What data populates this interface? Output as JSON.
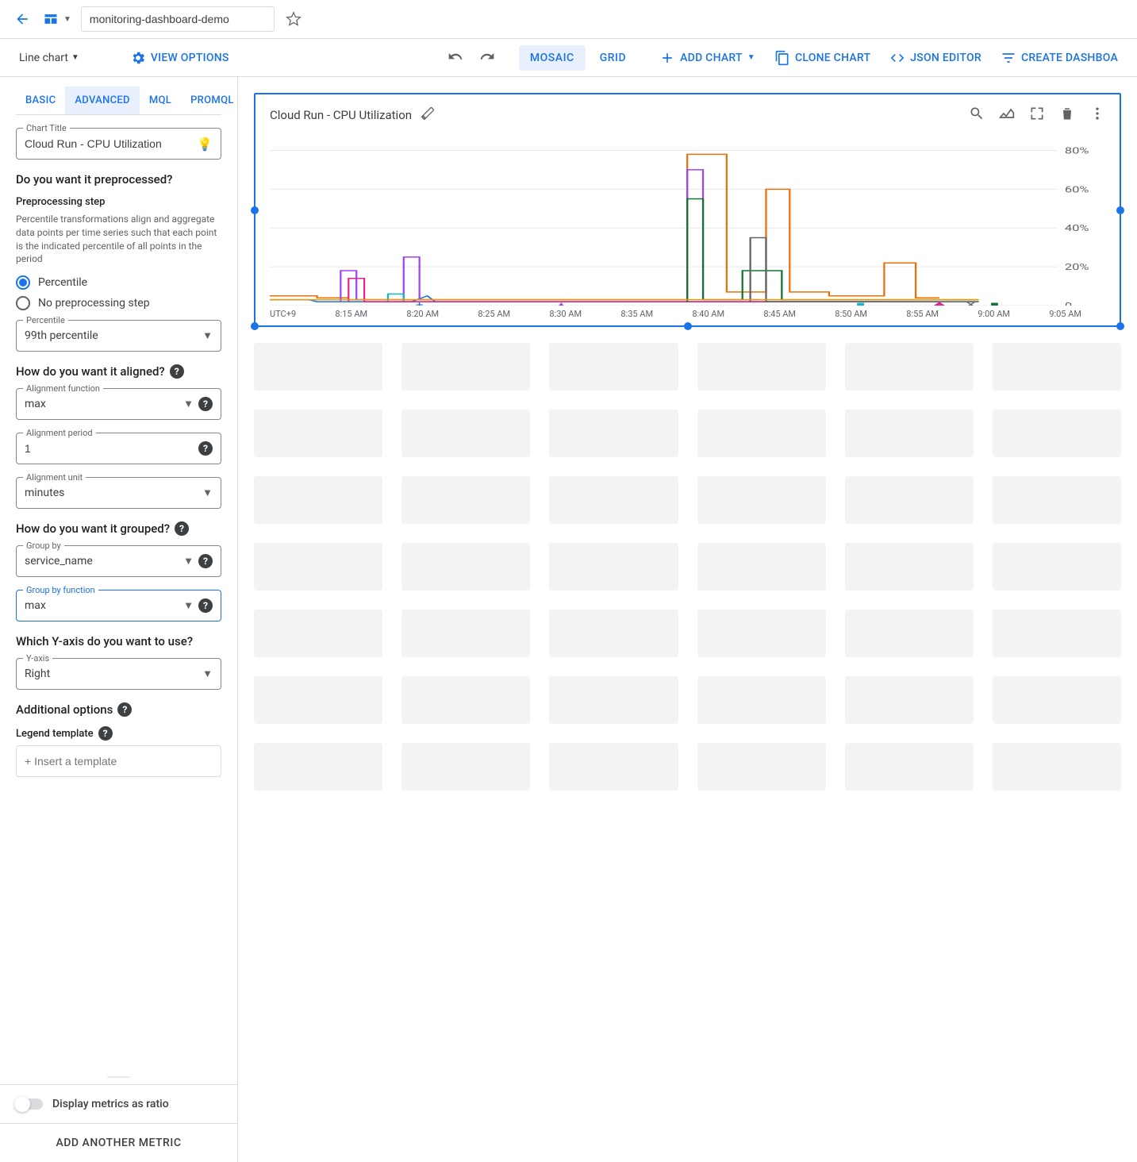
{
  "breadcrumb": "monitoring-dashboard-demo",
  "chart_type_selector": "Line chart",
  "view_options": "VIEW OPTIONS",
  "layout_seg": {
    "mosaic": "MOSAIC",
    "grid": "GRID"
  },
  "toolbar": {
    "add_chart": "ADD CHART",
    "clone_chart": "CLONE CHART",
    "json_editor": "JSON EDITOR",
    "create_dashboard": "CREATE DASHBOA"
  },
  "tabs": {
    "basic": "BASIC",
    "advanced": "ADVANCED",
    "mql": "MQL",
    "promql": "PROMQL"
  },
  "chart_title_field": {
    "label": "Chart Title",
    "value": "Cloud Run - CPU Utilization"
  },
  "preprocess": {
    "heading": "Do you want it preprocessed?",
    "sub": "Preprocessing step",
    "help": "Percentile transformations align and aggregate data points per time series such that each point is the indicated percentile of all points in the period",
    "opt_percentile": "Percentile",
    "opt_none": "No preprocessing step",
    "selected": "percentile",
    "percentile_label": "Percentile",
    "percentile_value": "99th percentile"
  },
  "align": {
    "heading": "How do you want it aligned?",
    "func_label": "Alignment function",
    "func_value": "max",
    "period_label": "Alignment period",
    "period_value": "1",
    "unit_label": "Alignment unit",
    "unit_value": "minutes"
  },
  "group": {
    "heading": "How do you want it grouped?",
    "by_label": "Group by",
    "by_value": "service_name",
    "func_label": "Group by function",
    "func_value": "max"
  },
  "yaxis": {
    "heading": "Which Y-axis do you want to use?",
    "label": "Y-axis",
    "value": "Right"
  },
  "additional": {
    "heading": "Additional options",
    "legend_label": "Legend template",
    "legend_placeholder": "+ Insert a template"
  },
  "ratio_label": "Display metrics as ratio",
  "add_metric": "ADD ANOTHER METRIC",
  "chart": {
    "title": "Cloud Run - CPU Utilization",
    "type": "line",
    "ylabels": [
      "80%",
      "60%",
      "40%",
      "20%",
      "0"
    ],
    "ylim": [
      0,
      90
    ],
    "xlabels": [
      "8:15 AM",
      "8:20 AM",
      "8:25 AM",
      "8:30 AM",
      "8:35 AM",
      "8:40 AM",
      "8:45 AM",
      "8:50 AM",
      "8:55 AM",
      "9:00 AM",
      "9:05 AM"
    ],
    "tz": "UTC+9",
    "background": "#ffffff",
    "grid_color": "#e8eaed",
    "series": [
      {
        "color": "#1a73e8",
        "points": [
          [
            0,
            3
          ],
          [
            5,
            3
          ],
          [
            6,
            2
          ],
          [
            18,
            2
          ],
          [
            20,
            5
          ],
          [
            21,
            2
          ],
          [
            78,
            2
          ]
        ]
      },
      {
        "color": "#e8710a",
        "points": [
          [
            0,
            5
          ],
          [
            6,
            5
          ],
          [
            6,
            4
          ],
          [
            10,
            4
          ],
          [
            10,
            3
          ],
          [
            53,
            3
          ],
          [
            53,
            78
          ],
          [
            58,
            78
          ],
          [
            58,
            7
          ],
          [
            63,
            7
          ],
          [
            63,
            60
          ],
          [
            66,
            60
          ],
          [
            66,
            7
          ],
          [
            71,
            7
          ],
          [
            71,
            5
          ],
          [
            78,
            5
          ],
          [
            78,
            22
          ],
          [
            82,
            22
          ],
          [
            82,
            4
          ],
          [
            85,
            4
          ]
        ]
      },
      {
        "color": "#a142f4",
        "points": [
          [
            9,
            2
          ],
          [
            9,
            18
          ],
          [
            11,
            18
          ],
          [
            11,
            3
          ],
          [
            17,
            3
          ],
          [
            17,
            25
          ],
          [
            19,
            25
          ],
          [
            19,
            3
          ],
          [
            53,
            3
          ],
          [
            53,
            70
          ],
          [
            55,
            70
          ],
          [
            55,
            3
          ],
          [
            62,
            3
          ]
        ]
      },
      {
        "color": "#12b5cb",
        "points": [
          [
            15,
            2
          ],
          [
            15,
            6
          ],
          [
            17,
            6
          ],
          [
            17,
            2
          ],
          [
            90,
            2
          ]
        ]
      },
      {
        "color": "#e52592",
        "points": [
          [
            10,
            2
          ],
          [
            10,
            14
          ],
          [
            12,
            14
          ],
          [
            12,
            2
          ],
          [
            85,
            2
          ]
        ]
      },
      {
        "color": "#137333",
        "points": [
          [
            53,
            2
          ],
          [
            53,
            55
          ],
          [
            55,
            55
          ],
          [
            55,
            3
          ],
          [
            60,
            3
          ],
          [
            60,
            18
          ],
          [
            65,
            18
          ],
          [
            65,
            3
          ],
          [
            90,
            3
          ]
        ]
      },
      {
        "color": "#5f6368",
        "points": [
          [
            61,
            2
          ],
          [
            61,
            35
          ],
          [
            63,
            35
          ],
          [
            63,
            2
          ],
          [
            90,
            2
          ]
        ]
      },
      {
        "color": "#f29900",
        "points": [
          [
            0,
            3
          ],
          [
            90,
            3
          ]
        ]
      }
    ],
    "markers": [
      {
        "x": 19,
        "glyph": "+",
        "color": "#1a73e8"
      },
      {
        "x": 37,
        "glyph": "▲",
        "color": "#a142f4"
      },
      {
        "x": 75,
        "glyph": "■",
        "color": "#12b5cb"
      },
      {
        "x": 85,
        "glyph": "◆",
        "color": "#e52592"
      },
      {
        "x": 89,
        "glyph": "✕",
        "color": "#5f6368"
      },
      {
        "x": 92,
        "glyph": "■",
        "color": "#137333"
      }
    ]
  }
}
